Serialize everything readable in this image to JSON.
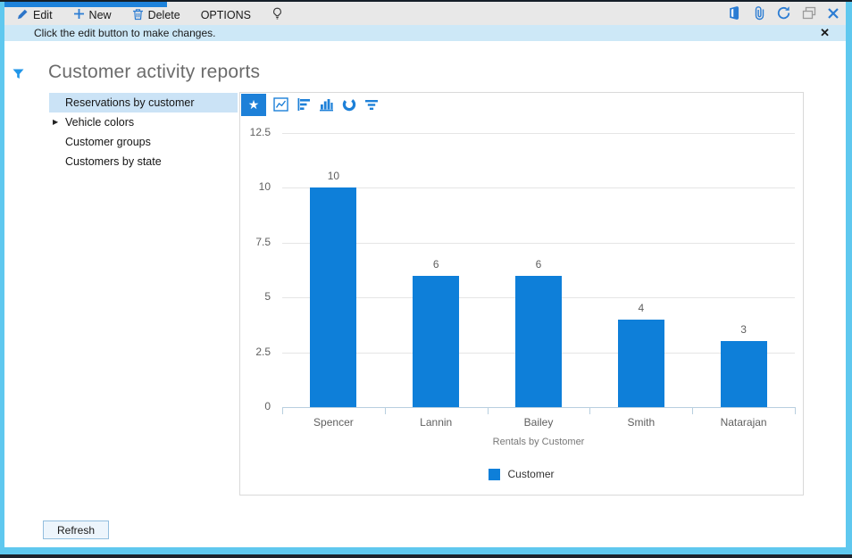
{
  "window": {
    "accent_color": "#1e82da",
    "border_color": "#5fc8ef",
    "selection_color": "#cbe3f6",
    "notification_bg": "#cde8f7"
  },
  "toolbar": {
    "items": [
      {
        "label": "Edit",
        "icon": "pencil-icon"
      },
      {
        "label": "New",
        "icon": "plus-icon"
      },
      {
        "label": "Delete",
        "icon": "trash-icon"
      },
      {
        "label": "OPTIONS",
        "icon": ""
      },
      {
        "label": "",
        "icon": "lightbulb-icon"
      }
    ],
    "right_icons": [
      "office-icon",
      "paperclip-icon",
      "refresh-icon",
      "popout-icon",
      "close-icon"
    ]
  },
  "notification": {
    "message": "Click the edit button to make changes.",
    "close_glyph": "✕"
  },
  "page": {
    "title": "Customer activity reports"
  },
  "report_list": {
    "items": [
      {
        "label": "Reservations by customer",
        "selected": true
      },
      {
        "label": "Vehicle colors",
        "expandable": true
      },
      {
        "label": "Customer groups",
        "selected": false
      },
      {
        "label": "Customers by state",
        "selected": false
      }
    ]
  },
  "chart_toolbar": {
    "items": [
      {
        "icon": "star-icon",
        "selected": true
      },
      {
        "icon": "line-chart-icon",
        "selected": false
      },
      {
        "icon": "bar-chart-horizontal-icon",
        "selected": false
      },
      {
        "icon": "column-chart-icon",
        "selected": false
      },
      {
        "icon": "donut-chart-icon",
        "selected": false
      },
      {
        "icon": "funnel-chart-icon",
        "selected": false
      }
    ],
    "star_glyph": "★"
  },
  "chart_data": {
    "type": "bar",
    "title": "",
    "categories": [
      "Spencer",
      "Lannin",
      "Bailey",
      "Smith",
      "Natarajan"
    ],
    "values": [
      10,
      6,
      6,
      4,
      3
    ],
    "series": [
      {
        "name": "Customer",
        "values": [
          10,
          6,
          6,
          4,
          3
        ]
      }
    ],
    "xlabel": "Rentals by Customer",
    "ylabel": "",
    "yticks": [
      0,
      2.5,
      5,
      7.5,
      10,
      12.5
    ],
    "ylim": [
      0,
      12.5
    ],
    "grid": true,
    "legend": [
      "Customer"
    ],
    "legend_position": "bottom",
    "bar_color": "#0e7fd9"
  },
  "footer": {
    "refresh_label": "Refresh"
  }
}
